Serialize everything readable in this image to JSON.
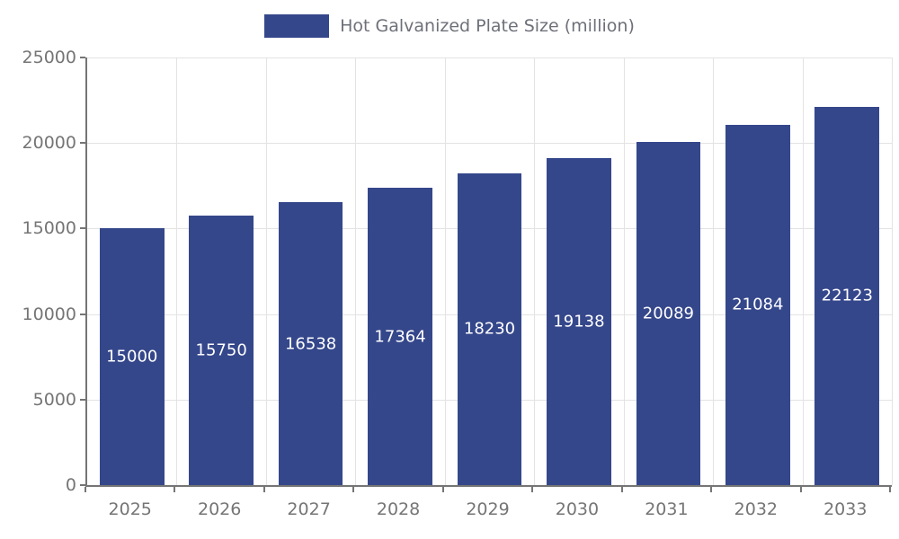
{
  "chart_data": {
    "type": "bar",
    "title": "Hot Galvanized Plate Size (million)",
    "categories": [
      "2025",
      "2026",
      "2027",
      "2028",
      "2029",
      "2030",
      "2031",
      "2032",
      "2033"
    ],
    "values": [
      15000,
      15750,
      16538,
      17364,
      18230,
      19138,
      20089,
      21084,
      22123
    ],
    "xlabel": "",
    "ylabel": "",
    "ylim": [
      0,
      25000
    ],
    "yticks": [
      0,
      5000,
      10000,
      15000,
      20000,
      25000
    ],
    "grid": true,
    "legend_position": "top",
    "bar_color": "#35478b",
    "bar_label_color": "#ffffff",
    "axis_color": "#757575",
    "grid_color": "#e3e3e3",
    "tick_label_color": "#757575"
  }
}
